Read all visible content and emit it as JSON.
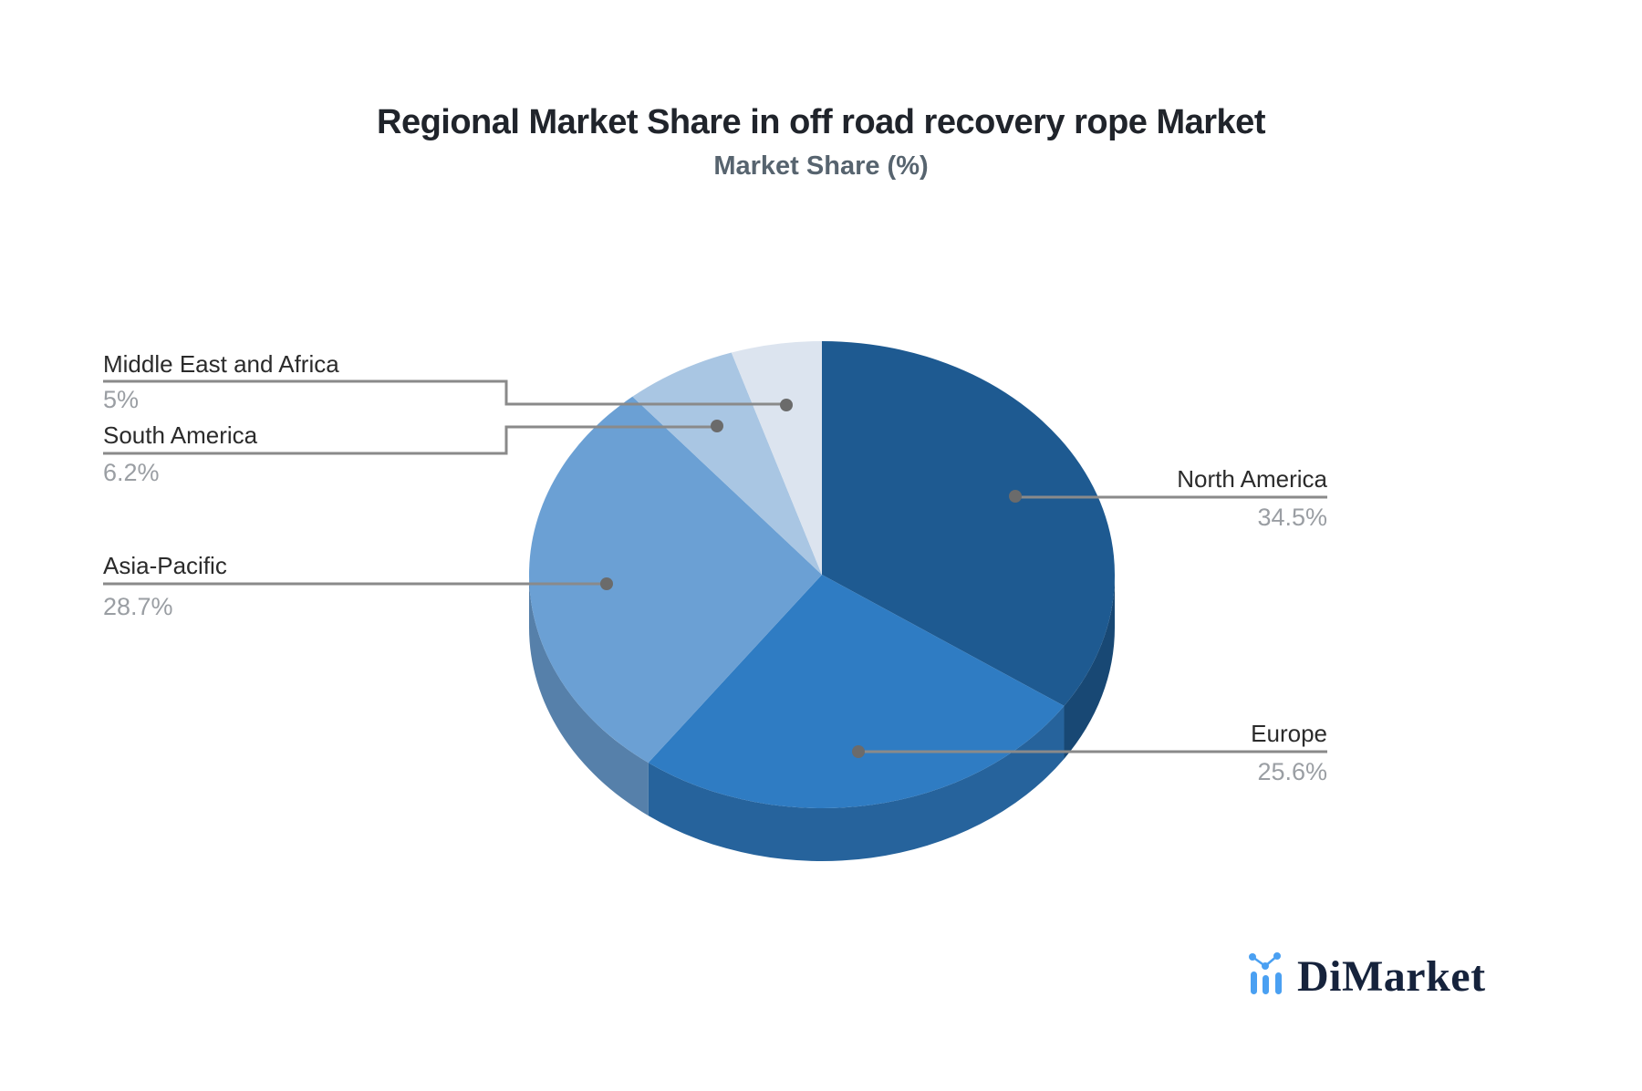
{
  "brand": {
    "name": "DiMarket",
    "icon": "bar-line-chart-icon",
    "icon_color": "#4aa0f2",
    "text_color": "#16233c"
  },
  "chart_data": {
    "type": "pie",
    "style": "3d",
    "title": "Regional Market Share in off road recovery rope Market",
    "subtitle": "Market Share (%)",
    "start_angle_deg": 0,
    "direction": "clockwise",
    "total": 100,
    "slices": [
      {
        "label": "North America",
        "value": 34.5,
        "display": "34.5%",
        "color": "#1e5a91"
      },
      {
        "label": "Europe",
        "value": 25.6,
        "display": "25.6%",
        "color": "#2f7cc3"
      },
      {
        "label": "Asia-Pacific",
        "value": 28.7,
        "display": "28.7%",
        "color": "#6ba0d4"
      },
      {
        "label": "South America",
        "value": 6.2,
        "display": "6.2%",
        "color": "#a9c6e3"
      },
      {
        "label": "Middle East and Africa",
        "value": 5,
        "display": "5%",
        "color": "#dce4ef"
      }
    ],
    "legend": "none",
    "leader_line_color": "#8a8a8a",
    "leader_dot_color": "#6b6b6b",
    "label_color": "#2b2b2b",
    "value_color": "#9a9ea3"
  }
}
